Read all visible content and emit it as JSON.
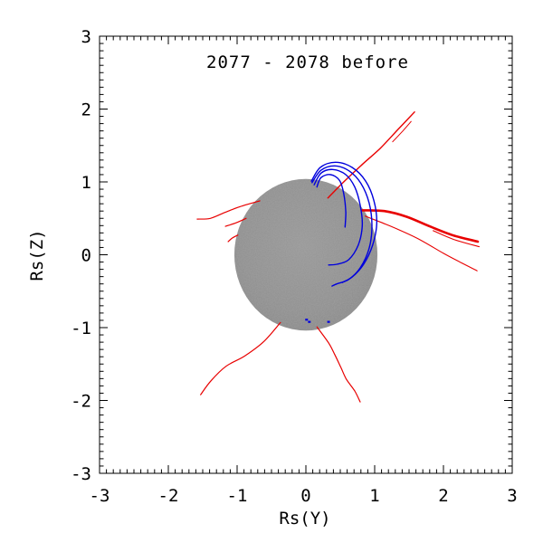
{
  "chart_data": {
    "type": "line",
    "title": "2077 - 2078 before",
    "xlabel": "Rs(Y)",
    "ylabel": "Rs(Z)",
    "xlim": [
      -3,
      3
    ],
    "ylim": [
      -3,
      3
    ],
    "x_tick_values": [
      -3,
      -2,
      -1,
      0,
      1,
      2,
      3
    ],
    "x_tick_labels": [
      "-3",
      "-2",
      "-1",
      "0",
      "1",
      "2",
      "3"
    ],
    "y_tick_values": [
      -3,
      -2,
      -1,
      0,
      1,
      2,
      3
    ],
    "y_tick_labels": [
      "-3",
      "-2",
      "-1",
      "0",
      "1",
      "2",
      "3"
    ],
    "minor_ticks_per_major": 10,
    "grid": false,
    "legend": null,
    "colors": {
      "open_field": "#e80000",
      "closed_field": "#0000dd",
      "axis": "#000000",
      "background": "#ffffff",
      "sun": "#8e8e8e"
    },
    "sun": {
      "center": [
        0,
        0
      ],
      "radius_rs": 1.04
    },
    "series": [
      {
        "name": "open-field-line-top-right",
        "kind": "open",
        "color": "#e80000",
        "width": 1.4,
        "points": [
          [
            0.32,
            0.78
          ],
          [
            0.55,
            1.0
          ],
          [
            0.82,
            1.24
          ],
          [
            1.08,
            1.46
          ],
          [
            1.34,
            1.72
          ],
          [
            1.58,
            1.96
          ]
        ]
      },
      {
        "name": "open-field-line-top-right-fork",
        "kind": "open",
        "color": "#e80000",
        "width": 1.0,
        "points": [
          [
            1.26,
            1.55
          ],
          [
            1.42,
            1.71
          ],
          [
            1.53,
            1.83
          ]
        ]
      },
      {
        "name": "open-field-line-right-thick",
        "kind": "open",
        "color": "#e80000",
        "width": 2.6,
        "points": [
          [
            0.82,
            0.61
          ],
          [
            1.14,
            0.6
          ],
          [
            1.47,
            0.52
          ],
          [
            1.8,
            0.39
          ],
          [
            2.13,
            0.27
          ],
          [
            2.5,
            0.18
          ]
        ]
      },
      {
        "name": "open-field-line-right-fork",
        "kind": "open",
        "color": "#e80000",
        "width": 1.1,
        "points": [
          [
            1.85,
            0.33
          ],
          [
            2.15,
            0.21
          ],
          [
            2.52,
            0.11
          ]
        ]
      },
      {
        "name": "open-field-line-right-lower",
        "kind": "open",
        "color": "#e80000",
        "width": 1.1,
        "points": [
          [
            0.86,
            0.53
          ],
          [
            1.21,
            0.4
          ],
          [
            1.61,
            0.23
          ],
          [
            2.0,
            0.02
          ],
          [
            2.26,
            -0.11
          ],
          [
            2.49,
            -0.22
          ]
        ]
      },
      {
        "name": "open-field-line-left-upper",
        "kind": "open",
        "color": "#e80000",
        "width": 1.2,
        "points": [
          [
            -0.67,
            0.74
          ],
          [
            -0.96,
            0.66
          ],
          [
            -1.18,
            0.58
          ],
          [
            -1.39,
            0.5
          ],
          [
            -1.58,
            0.49
          ]
        ]
      },
      {
        "name": "open-field-line-left-middle",
        "kind": "open",
        "color": "#e80000",
        "width": 1.2,
        "points": [
          [
            -0.87,
            0.5
          ],
          [
            -1.01,
            0.44
          ],
          [
            -1.17,
            0.39
          ]
        ]
      },
      {
        "name": "open-field-line-left-lower",
        "kind": "open",
        "color": "#e80000",
        "width": 1.2,
        "points": [
          [
            -0.99,
            0.27
          ],
          [
            -1.07,
            0.23
          ],
          [
            -1.13,
            0.18
          ]
        ]
      },
      {
        "name": "open-field-line-bottom-left",
        "kind": "open",
        "color": "#e80000",
        "width": 1.2,
        "points": [
          [
            -0.37,
            -0.93
          ],
          [
            -0.61,
            -1.19
          ],
          [
            -0.89,
            -1.39
          ],
          [
            -1.16,
            -1.53
          ],
          [
            -1.38,
            -1.73
          ],
          [
            -1.53,
            -1.92
          ]
        ]
      },
      {
        "name": "open-field-line-bottom-right",
        "kind": "open",
        "color": "#e80000",
        "width": 1.2,
        "points": [
          [
            0.16,
            -0.99
          ],
          [
            0.33,
            -1.21
          ],
          [
            0.42,
            -1.37
          ],
          [
            0.51,
            -1.55
          ],
          [
            0.59,
            -1.71
          ],
          [
            0.71,
            -1.87
          ],
          [
            0.79,
            -2.02
          ]
        ]
      },
      {
        "name": "closed-loop-inner",
        "kind": "closed",
        "color": "#0000dd",
        "width": 1.4,
        "points": [
          [
            0.16,
            0.93
          ],
          [
            0.22,
            1.06
          ],
          [
            0.36,
            1.1
          ],
          [
            0.49,
            1.02
          ],
          [
            0.55,
            0.84
          ],
          [
            0.58,
            0.59
          ],
          [
            0.57,
            0.38
          ]
        ]
      },
      {
        "name": "closed-loop-middle",
        "kind": "closed",
        "color": "#0000dd",
        "width": 1.4,
        "points": [
          [
            0.12,
            0.96
          ],
          [
            0.22,
            1.12
          ],
          [
            0.39,
            1.17
          ],
          [
            0.58,
            1.1
          ],
          [
            0.71,
            0.93
          ],
          [
            0.79,
            0.68
          ],
          [
            0.82,
            0.4
          ],
          [
            0.76,
            0.13
          ],
          [
            0.62,
            -0.07
          ],
          [
            0.45,
            -0.13
          ],
          [
            0.33,
            -0.14
          ]
        ]
      },
      {
        "name": "closed-loop-outer",
        "kind": "closed",
        "color": "#0000dd",
        "width": 1.4,
        "points": [
          [
            0.09,
            0.99
          ],
          [
            0.22,
            1.16
          ],
          [
            0.42,
            1.22
          ],
          [
            0.63,
            1.15
          ],
          [
            0.8,
            0.98
          ],
          [
            0.92,
            0.71
          ],
          [
            0.96,
            0.4
          ],
          [
            0.92,
            0.09
          ],
          [
            0.79,
            -0.18
          ],
          [
            0.62,
            -0.34
          ],
          [
            0.45,
            -0.4
          ],
          [
            0.38,
            -0.43
          ]
        ]
      },
      {
        "name": "closed-loop-outermost",
        "kind": "closed",
        "color": "#0000dd",
        "width": 1.4,
        "points": [
          [
            0.08,
            1.01
          ],
          [
            0.21,
            1.2
          ],
          [
            0.43,
            1.27
          ],
          [
            0.67,
            1.2
          ],
          [
            0.87,
            1.01
          ],
          [
            0.99,
            0.74
          ],
          [
            1.03,
            0.43
          ],
          [
            0.97,
            0.13
          ],
          [
            0.84,
            -0.13
          ],
          [
            0.68,
            -0.3
          ],
          [
            0.53,
            -0.38
          ]
        ]
      }
    ],
    "footpoint_dots": {
      "color": "#0000dd",
      "points": [
        [
          0.01,
          -0.89
        ],
        [
          0.05,
          -0.92
        ],
        [
          0.33,
          -0.92
        ]
      ]
    }
  }
}
